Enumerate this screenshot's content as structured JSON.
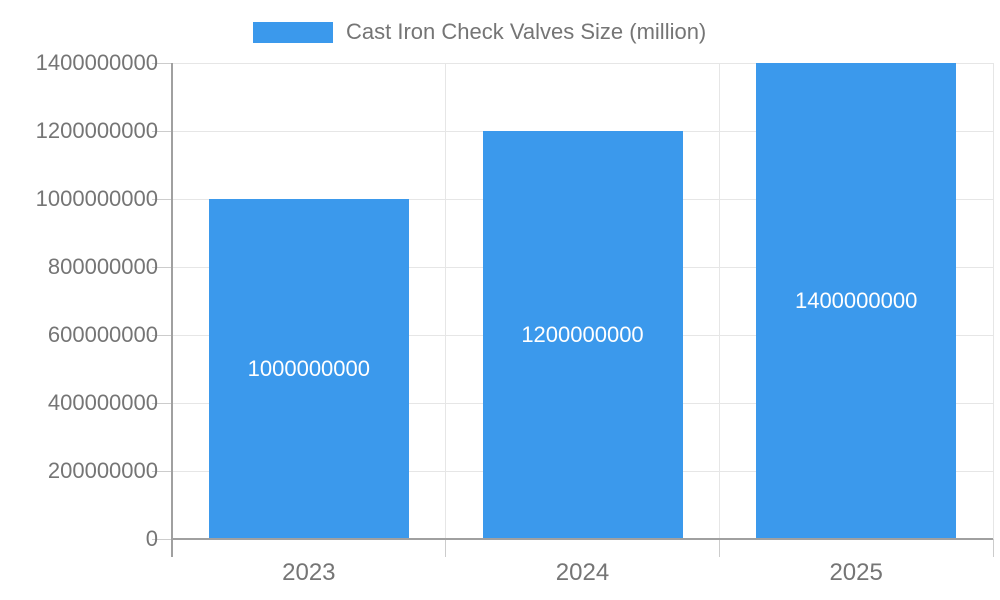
{
  "chart_data": {
    "type": "bar",
    "title": "",
    "series_name": "Cast Iron Check Valves Size (million)",
    "categories": [
      "2023",
      "2024",
      "2025"
    ],
    "values": [
      1000000000,
      1200000000,
      1400000000
    ],
    "bar_labels": [
      "1000000000",
      "1200000000",
      "1400000000"
    ],
    "y_ticks": [
      0,
      200000000,
      400000000,
      600000000,
      800000000,
      1000000000,
      1200000000,
      1400000000
    ],
    "y_tick_labels": [
      "0",
      "200000000",
      "400000000",
      "600000000",
      "800000000",
      "1000000000",
      "1200000000",
      "1400000000"
    ],
    "ylim": [
      0,
      1400000000
    ],
    "grid": true,
    "legend_position": "top",
    "colors": {
      "bar": "#3b99ec",
      "bar_label_text": "#ffffff",
      "axis_text": "#757575",
      "grid_line": "#e6e6e6",
      "tick_line": "#cccccc",
      "axis_line": "#a0a0a0",
      "background": "#ffffff"
    }
  }
}
